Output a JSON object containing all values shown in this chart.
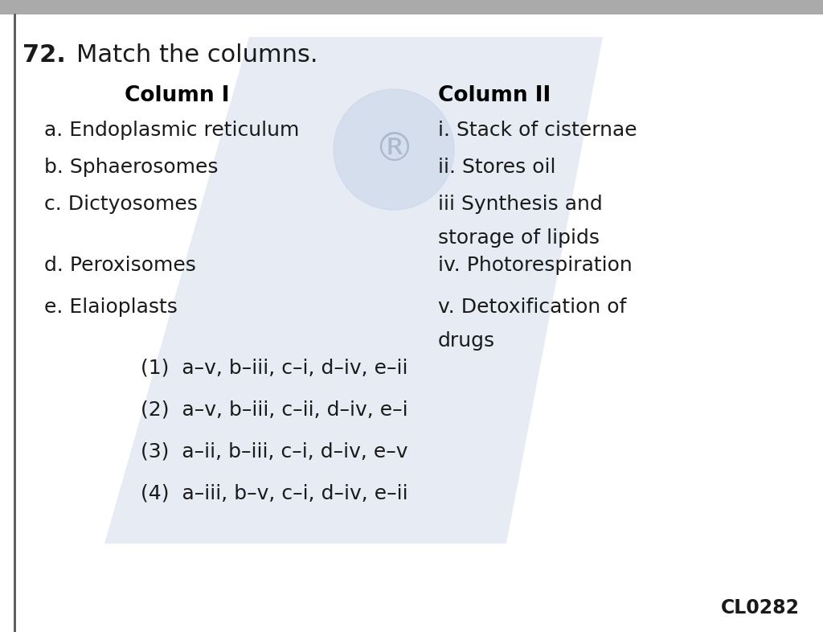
{
  "question_number": "72.",
  "question_text": "Match the columns.",
  "col1_header": "Column I",
  "col2_header": "Column II",
  "col1_items": [
    "a. Endoplasmic reticulum",
    "b. Sphaerosomes",
    "c. Dictyosomes",
    "d. Peroxisomes",
    "e. Elaioplasts"
  ],
  "col2_line1": [
    "i. Stack of cisternae",
    "ii. Stores oil",
    "iii Synthesis and",
    "iv. Photorespiration",
    "v. Detoxification of"
  ],
  "col2_line2": [
    "",
    "",
    "     storage of lipids",
    "",
    "     drugs"
  ],
  "options": [
    "(1)  a–v, b–iii, c–i, d–iv, e–ii",
    "(2)  a–v, b–iii, c–ii, d–iv, e–i",
    "(3)  a–ii, b–iii, c–i, d–iv, e–v",
    "(4)  a–iii, b–v, c–i, d–iv, e–ii"
  ],
  "code_text": "CL0282",
  "bg_color": "#ffffff",
  "text_color": "#1a1a1a",
  "header_color": "#000000",
  "watermark_color": "#c8d4e8",
  "top_bar_color": "#aaaaaa",
  "left_border_color": "#555555"
}
